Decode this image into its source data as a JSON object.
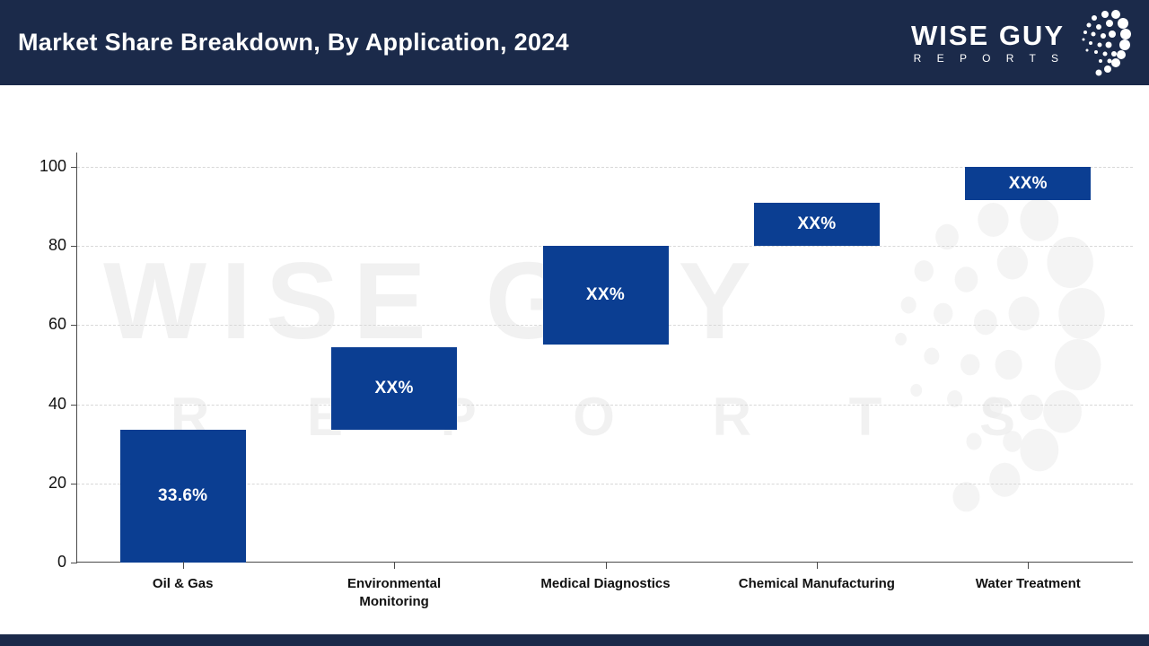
{
  "header": {
    "title": "Market Share Breakdown, By Application, 2024",
    "logo": {
      "name": "WISE GUY",
      "tagline": "R E P O R T S"
    }
  },
  "watermark": {
    "line1": "WISE GUY",
    "line2": "R E P O R T S"
  },
  "colors": {
    "header_bg": "#1b2a4a",
    "footer_bg": "#1b2a4a",
    "bar": "#0b3e92",
    "bar_label": "#ffffff",
    "gridline": "#d8d8d8",
    "axis": "#4a4a4a"
  },
  "chart_data": {
    "type": "bar",
    "subtype": "floating-waterfall",
    "title": "Market Share Breakdown, By Application, 2024",
    "categories": [
      "Oil & Gas",
      "Environmental Monitoring",
      "Medical Diagnostics",
      "Chemical Manufacturing",
      "Water Treatment"
    ],
    "bars": [
      {
        "category": "Oil & Gas",
        "start": 0,
        "end": 33.6,
        "label": "33.6%"
      },
      {
        "category": "Environmental Monitoring",
        "start": 33.6,
        "end": 54.5,
        "label": "XX%"
      },
      {
        "category": "Medical Diagnostics",
        "start": 55,
        "end": 80,
        "label": "XX%"
      },
      {
        "category": "Chemical Manufacturing",
        "start": 80,
        "end": 91,
        "label": "XX%"
      },
      {
        "category": "Water Treatment",
        "start": 91.5,
        "end": 100,
        "label": "XX%"
      }
    ],
    "ylim": [
      0,
      100
    ],
    "yticks": [
      0,
      20,
      40,
      60,
      80,
      100
    ],
    "xlabel": "",
    "ylabel": "",
    "grid": "horizontal-dashed",
    "legend": "none"
  }
}
